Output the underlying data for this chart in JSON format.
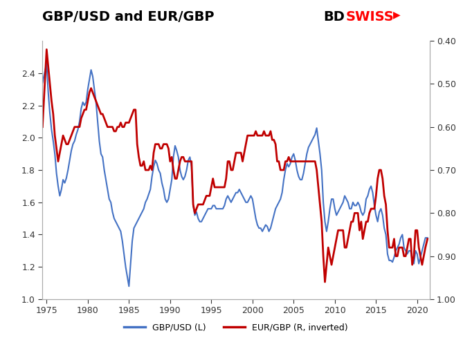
{
  "title": "GBP/USD and EUR/GBP",
  "left_label": "GBP/USD (L)",
  "right_label": "EUR/GBP (R, inverted)",
  "left_color": "#4472C4",
  "right_color": "#C00000",
  "left_ylim": [
    1.0,
    2.6
  ],
  "right_ylim": [
    0.4,
    1.0
  ],
  "xlim_start": 1974.5,
  "xlim_end": 2021.5,
  "xticks": [
    1975,
    1980,
    1985,
    1990,
    1995,
    2000,
    2005,
    2010,
    2015,
    2020
  ],
  "left_yticks": [
    1.0,
    1.2,
    1.4,
    1.6,
    1.8,
    2.0,
    2.2,
    2.4
  ],
  "right_yticks": [
    0.4,
    0.5,
    0.6,
    0.7,
    0.8,
    0.9,
    1.0
  ],
  "background_color": "#FFFFFF",
  "gbpusd_data": [
    [
      1974.5,
      2.34
    ],
    [
      1975.0,
      2.46
    ],
    [
      1975.2,
      2.28
    ],
    [
      1975.4,
      2.15
    ],
    [
      1975.6,
      2.05
    ],
    [
      1975.8,
      1.98
    ],
    [
      1976.0,
      1.9
    ],
    [
      1976.2,
      1.78
    ],
    [
      1976.4,
      1.7
    ],
    [
      1976.6,
      1.64
    ],
    [
      1976.8,
      1.68
    ],
    [
      1977.0,
      1.74
    ],
    [
      1977.2,
      1.72
    ],
    [
      1977.4,
      1.75
    ],
    [
      1977.6,
      1.8
    ],
    [
      1977.8,
      1.86
    ],
    [
      1978.0,
      1.92
    ],
    [
      1978.2,
      1.96
    ],
    [
      1978.4,
      1.98
    ],
    [
      1978.6,
      2.02
    ],
    [
      1978.8,
      2.05
    ],
    [
      1979.0,
      2.1
    ],
    [
      1979.2,
      2.18
    ],
    [
      1979.4,
      2.22
    ],
    [
      1979.6,
      2.2
    ],
    [
      1979.8,
      2.22
    ],
    [
      1980.0,
      2.3
    ],
    [
      1980.2,
      2.36
    ],
    [
      1980.4,
      2.42
    ],
    [
      1980.6,
      2.38
    ],
    [
      1980.8,
      2.3
    ],
    [
      1981.0,
      2.22
    ],
    [
      1981.2,
      2.1
    ],
    [
      1981.4,
      1.98
    ],
    [
      1981.6,
      1.9
    ],
    [
      1981.8,
      1.88
    ],
    [
      1982.0,
      1.8
    ],
    [
      1982.2,
      1.74
    ],
    [
      1982.4,
      1.68
    ],
    [
      1982.6,
      1.62
    ],
    [
      1982.8,
      1.6
    ],
    [
      1983.0,
      1.54
    ],
    [
      1983.2,
      1.5
    ],
    [
      1983.4,
      1.48
    ],
    [
      1983.6,
      1.46
    ],
    [
      1983.8,
      1.44
    ],
    [
      1984.0,
      1.42
    ],
    [
      1984.2,
      1.36
    ],
    [
      1984.4,
      1.28
    ],
    [
      1984.6,
      1.2
    ],
    [
      1984.8,
      1.14
    ],
    [
      1985.0,
      1.08
    ],
    [
      1985.2,
      1.22
    ],
    [
      1985.4,
      1.36
    ],
    [
      1985.6,
      1.44
    ],
    [
      1985.8,
      1.46
    ],
    [
      1986.0,
      1.48
    ],
    [
      1986.2,
      1.5
    ],
    [
      1986.4,
      1.52
    ],
    [
      1986.6,
      1.54
    ],
    [
      1986.8,
      1.56
    ],
    [
      1987.0,
      1.6
    ],
    [
      1987.2,
      1.62
    ],
    [
      1987.4,
      1.65
    ],
    [
      1987.6,
      1.68
    ],
    [
      1987.8,
      1.76
    ],
    [
      1988.0,
      1.82
    ],
    [
      1988.2,
      1.86
    ],
    [
      1988.4,
      1.84
    ],
    [
      1988.6,
      1.8
    ],
    [
      1988.8,
      1.78
    ],
    [
      1989.0,
      1.72
    ],
    [
      1989.2,
      1.68
    ],
    [
      1989.4,
      1.62
    ],
    [
      1989.6,
      1.6
    ],
    [
      1989.8,
      1.62
    ],
    [
      1990.0,
      1.68
    ],
    [
      1990.2,
      1.74
    ],
    [
      1990.4,
      1.88
    ],
    [
      1990.6,
      1.95
    ],
    [
      1990.8,
      1.92
    ],
    [
      1991.0,
      1.88
    ],
    [
      1991.2,
      1.8
    ],
    [
      1991.4,
      1.76
    ],
    [
      1991.6,
      1.74
    ],
    [
      1991.8,
      1.76
    ],
    [
      1992.0,
      1.8
    ],
    [
      1992.2,
      1.86
    ],
    [
      1992.4,
      1.88
    ],
    [
      1992.6,
      1.82
    ],
    [
      1992.8,
      1.58
    ],
    [
      1993.0,
      1.52
    ],
    [
      1993.2,
      1.54
    ],
    [
      1993.4,
      1.5
    ],
    [
      1993.6,
      1.48
    ],
    [
      1993.8,
      1.48
    ],
    [
      1994.0,
      1.5
    ],
    [
      1994.2,
      1.52
    ],
    [
      1994.4,
      1.54
    ],
    [
      1994.6,
      1.56
    ],
    [
      1994.8,
      1.56
    ],
    [
      1995.0,
      1.56
    ],
    [
      1995.2,
      1.58
    ],
    [
      1995.4,
      1.58
    ],
    [
      1995.6,
      1.56
    ],
    [
      1995.8,
      1.56
    ],
    [
      1996.0,
      1.56
    ],
    [
      1996.2,
      1.56
    ],
    [
      1996.4,
      1.56
    ],
    [
      1996.6,
      1.58
    ],
    [
      1996.8,
      1.62
    ],
    [
      1997.0,
      1.64
    ],
    [
      1997.2,
      1.62
    ],
    [
      1997.4,
      1.6
    ],
    [
      1997.6,
      1.62
    ],
    [
      1997.8,
      1.64
    ],
    [
      1998.0,
      1.66
    ],
    [
      1998.2,
      1.66
    ],
    [
      1998.4,
      1.68
    ],
    [
      1998.6,
      1.66
    ],
    [
      1998.8,
      1.64
    ],
    [
      1999.0,
      1.62
    ],
    [
      1999.2,
      1.6
    ],
    [
      1999.4,
      1.6
    ],
    [
      1999.6,
      1.62
    ],
    [
      1999.8,
      1.64
    ],
    [
      2000.0,
      1.62
    ],
    [
      2000.2,
      1.56
    ],
    [
      2000.4,
      1.5
    ],
    [
      2000.6,
      1.46
    ],
    [
      2000.8,
      1.44
    ],
    [
      2001.0,
      1.44
    ],
    [
      2001.2,
      1.42
    ],
    [
      2001.4,
      1.44
    ],
    [
      2001.6,
      1.46
    ],
    [
      2001.8,
      1.45
    ],
    [
      2002.0,
      1.42
    ],
    [
      2002.2,
      1.44
    ],
    [
      2002.4,
      1.48
    ],
    [
      2002.6,
      1.52
    ],
    [
      2002.8,
      1.56
    ],
    [
      2003.0,
      1.58
    ],
    [
      2003.2,
      1.6
    ],
    [
      2003.4,
      1.62
    ],
    [
      2003.6,
      1.66
    ],
    [
      2003.8,
      1.74
    ],
    [
      2004.0,
      1.8
    ],
    [
      2004.2,
      1.84
    ],
    [
      2004.4,
      1.82
    ],
    [
      2004.6,
      1.84
    ],
    [
      2004.8,
      1.88
    ],
    [
      2005.0,
      1.9
    ],
    [
      2005.2,
      1.86
    ],
    [
      2005.4,
      1.8
    ],
    [
      2005.6,
      1.76
    ],
    [
      2005.8,
      1.74
    ],
    [
      2006.0,
      1.74
    ],
    [
      2006.2,
      1.78
    ],
    [
      2006.4,
      1.84
    ],
    [
      2006.6,
      1.9
    ],
    [
      2006.8,
      1.94
    ],
    [
      2007.0,
      1.96
    ],
    [
      2007.2,
      1.98
    ],
    [
      2007.4,
      2.0
    ],
    [
      2007.6,
      2.02
    ],
    [
      2007.8,
      2.06
    ],
    [
      2008.0,
      1.98
    ],
    [
      2008.2,
      1.9
    ],
    [
      2008.4,
      1.8
    ],
    [
      2008.6,
      1.6
    ],
    [
      2008.8,
      1.48
    ],
    [
      2009.0,
      1.42
    ],
    [
      2009.2,
      1.48
    ],
    [
      2009.4,
      1.56
    ],
    [
      2009.6,
      1.62
    ],
    [
      2009.8,
      1.62
    ],
    [
      2010.0,
      1.56
    ],
    [
      2010.2,
      1.52
    ],
    [
      2010.4,
      1.54
    ],
    [
      2010.6,
      1.56
    ],
    [
      2010.8,
      1.58
    ],
    [
      2011.0,
      1.6
    ],
    [
      2011.2,
      1.64
    ],
    [
      2011.4,
      1.62
    ],
    [
      2011.6,
      1.6
    ],
    [
      2011.8,
      1.56
    ],
    [
      2012.0,
      1.56
    ],
    [
      2012.2,
      1.6
    ],
    [
      2012.4,
      1.58
    ],
    [
      2012.6,
      1.58
    ],
    [
      2012.8,
      1.6
    ],
    [
      2013.0,
      1.58
    ],
    [
      2013.2,
      1.54
    ],
    [
      2013.4,
      1.52
    ],
    [
      2013.6,
      1.54
    ],
    [
      2013.8,
      1.62
    ],
    [
      2014.0,
      1.64
    ],
    [
      2014.2,
      1.68
    ],
    [
      2014.4,
      1.7
    ],
    [
      2014.6,
      1.66
    ],
    [
      2014.8,
      1.58
    ],
    [
      2015.0,
      1.52
    ],
    [
      2015.2,
      1.48
    ],
    [
      2015.4,
      1.54
    ],
    [
      2015.6,
      1.56
    ],
    [
      2015.8,
      1.52
    ],
    [
      2016.0,
      1.44
    ],
    [
      2016.2,
      1.4
    ],
    [
      2016.4,
      1.28
    ],
    [
      2016.6,
      1.24
    ],
    [
      2016.8,
      1.24
    ],
    [
      2017.0,
      1.23
    ],
    [
      2017.2,
      1.26
    ],
    [
      2017.4,
      1.3
    ],
    [
      2017.6,
      1.32
    ],
    [
      2017.8,
      1.34
    ],
    [
      2018.0,
      1.38
    ],
    [
      2018.2,
      1.4
    ],
    [
      2018.4,
      1.32
    ],
    [
      2018.6,
      1.3
    ],
    [
      2018.8,
      1.28
    ],
    [
      2019.0,
      1.3
    ],
    [
      2019.2,
      1.3
    ],
    [
      2019.4,
      1.24
    ],
    [
      2019.6,
      1.22
    ],
    [
      2019.8,
      1.3
    ],
    [
      2020.0,
      1.28
    ],
    [
      2020.2,
      1.22
    ],
    [
      2020.4,
      1.26
    ],
    [
      2020.6,
      1.3
    ],
    [
      2020.8,
      1.34
    ],
    [
      2021.0,
      1.38
    ],
    [
      2021.25,
      1.38
    ]
  ],
  "eurgbp_data": [
    [
      1974.5,
      0.6
    ],
    [
      1975.0,
      0.42
    ],
    [
      1975.2,
      0.46
    ],
    [
      1975.4,
      0.5
    ],
    [
      1975.6,
      0.54
    ],
    [
      1975.8,
      0.57
    ],
    [
      1976.0,
      0.62
    ],
    [
      1976.2,
      0.65
    ],
    [
      1976.4,
      0.68
    ],
    [
      1976.6,
      0.66
    ],
    [
      1976.8,
      0.64
    ],
    [
      1977.0,
      0.62
    ],
    [
      1977.2,
      0.63
    ],
    [
      1977.4,
      0.64
    ],
    [
      1977.6,
      0.64
    ],
    [
      1977.8,
      0.63
    ],
    [
      1978.0,
      0.62
    ],
    [
      1978.2,
      0.61
    ],
    [
      1978.4,
      0.6
    ],
    [
      1978.6,
      0.6
    ],
    [
      1978.8,
      0.6
    ],
    [
      1979.0,
      0.6
    ],
    [
      1979.2,
      0.58
    ],
    [
      1979.4,
      0.57
    ],
    [
      1979.6,
      0.56
    ],
    [
      1979.8,
      0.56
    ],
    [
      1980.0,
      0.54
    ],
    [
      1980.2,
      0.52
    ],
    [
      1980.4,
      0.51
    ],
    [
      1980.6,
      0.52
    ],
    [
      1980.8,
      0.53
    ],
    [
      1981.0,
      0.54
    ],
    [
      1981.2,
      0.55
    ],
    [
      1981.4,
      0.56
    ],
    [
      1981.6,
      0.57
    ],
    [
      1981.8,
      0.57
    ],
    [
      1982.0,
      0.58
    ],
    [
      1982.2,
      0.59
    ],
    [
      1982.4,
      0.6
    ],
    [
      1982.6,
      0.6
    ],
    [
      1982.8,
      0.6
    ],
    [
      1983.0,
      0.6
    ],
    [
      1983.2,
      0.61
    ],
    [
      1983.4,
      0.61
    ],
    [
      1983.6,
      0.6
    ],
    [
      1983.8,
      0.6
    ],
    [
      1984.0,
      0.59
    ],
    [
      1984.2,
      0.6
    ],
    [
      1984.4,
      0.6
    ],
    [
      1984.6,
      0.59
    ],
    [
      1984.8,
      0.59
    ],
    [
      1985.0,
      0.59
    ],
    [
      1985.2,
      0.58
    ],
    [
      1985.4,
      0.57
    ],
    [
      1985.6,
      0.56
    ],
    [
      1985.8,
      0.56
    ],
    [
      1986.0,
      0.64
    ],
    [
      1986.2,
      0.67
    ],
    [
      1986.4,
      0.69
    ],
    [
      1986.6,
      0.69
    ],
    [
      1986.8,
      0.68
    ],
    [
      1987.0,
      0.7
    ],
    [
      1987.2,
      0.7
    ],
    [
      1987.4,
      0.7
    ],
    [
      1987.6,
      0.69
    ],
    [
      1987.8,
      0.7
    ],
    [
      1988.0,
      0.66
    ],
    [
      1988.2,
      0.64
    ],
    [
      1988.4,
      0.64
    ],
    [
      1988.6,
      0.64
    ],
    [
      1988.8,
      0.65
    ],
    [
      1989.0,
      0.65
    ],
    [
      1989.2,
      0.64
    ],
    [
      1989.4,
      0.64
    ],
    [
      1989.6,
      0.64
    ],
    [
      1989.8,
      0.65
    ],
    [
      1990.0,
      0.68
    ],
    [
      1990.2,
      0.67
    ],
    [
      1990.4,
      0.7
    ],
    [
      1990.6,
      0.72
    ],
    [
      1990.8,
      0.72
    ],
    [
      1991.0,
      0.7
    ],
    [
      1991.2,
      0.68
    ],
    [
      1991.4,
      0.67
    ],
    [
      1991.6,
      0.67
    ],
    [
      1991.8,
      0.68
    ],
    [
      1992.0,
      0.68
    ],
    [
      1992.2,
      0.68
    ],
    [
      1992.4,
      0.68
    ],
    [
      1992.6,
      0.68
    ],
    [
      1992.8,
      0.78
    ],
    [
      1993.0,
      0.8
    ],
    [
      1993.2,
      0.79
    ],
    [
      1993.4,
      0.78
    ],
    [
      1993.6,
      0.78
    ],
    [
      1993.8,
      0.78
    ],
    [
      1994.0,
      0.78
    ],
    [
      1994.2,
      0.77
    ],
    [
      1994.4,
      0.76
    ],
    [
      1994.6,
      0.76
    ],
    [
      1994.8,
      0.76
    ],
    [
      1995.0,
      0.74
    ],
    [
      1995.2,
      0.72
    ],
    [
      1995.4,
      0.74
    ],
    [
      1995.6,
      0.74
    ],
    [
      1995.8,
      0.74
    ],
    [
      1996.0,
      0.74
    ],
    [
      1996.2,
      0.74
    ],
    [
      1996.4,
      0.74
    ],
    [
      1996.6,
      0.74
    ],
    [
      1996.8,
      0.72
    ],
    [
      1997.0,
      0.68
    ],
    [
      1997.2,
      0.68
    ],
    [
      1997.4,
      0.7
    ],
    [
      1997.6,
      0.7
    ],
    [
      1997.8,
      0.68
    ],
    [
      1998.0,
      0.66
    ],
    [
      1998.2,
      0.66
    ],
    [
      1998.4,
      0.66
    ],
    [
      1998.6,
      0.66
    ],
    [
      1998.8,
      0.68
    ],
    [
      1999.0,
      0.66
    ],
    [
      1999.2,
      0.64
    ],
    [
      1999.4,
      0.62
    ],
    [
      1999.6,
      0.62
    ],
    [
      1999.8,
      0.62
    ],
    [
      2000.0,
      0.62
    ],
    [
      2000.2,
      0.62
    ],
    [
      2000.4,
      0.61
    ],
    [
      2000.6,
      0.62
    ],
    [
      2000.8,
      0.62
    ],
    [
      2001.0,
      0.62
    ],
    [
      2001.2,
      0.62
    ],
    [
      2001.4,
      0.61
    ],
    [
      2001.6,
      0.62
    ],
    [
      2001.8,
      0.62
    ],
    [
      2002.0,
      0.62
    ],
    [
      2002.2,
      0.61
    ],
    [
      2002.4,
      0.63
    ],
    [
      2002.6,
      0.63
    ],
    [
      2002.8,
      0.64
    ],
    [
      2003.0,
      0.68
    ],
    [
      2003.2,
      0.68
    ],
    [
      2003.4,
      0.7
    ],
    [
      2003.6,
      0.7
    ],
    [
      2003.8,
      0.7
    ],
    [
      2004.0,
      0.68
    ],
    [
      2004.2,
      0.68
    ],
    [
      2004.4,
      0.67
    ],
    [
      2004.6,
      0.68
    ],
    [
      2004.8,
      0.68
    ],
    [
      2005.0,
      0.68
    ],
    [
      2005.2,
      0.68
    ],
    [
      2005.4,
      0.68
    ],
    [
      2005.6,
      0.68
    ],
    [
      2005.8,
      0.68
    ],
    [
      2006.0,
      0.68
    ],
    [
      2006.2,
      0.68
    ],
    [
      2006.4,
      0.68
    ],
    [
      2006.6,
      0.68
    ],
    [
      2006.8,
      0.68
    ],
    [
      2007.0,
      0.68
    ],
    [
      2007.2,
      0.68
    ],
    [
      2007.4,
      0.68
    ],
    [
      2007.6,
      0.68
    ],
    [
      2007.8,
      0.7
    ],
    [
      2008.0,
      0.74
    ],
    [
      2008.2,
      0.78
    ],
    [
      2008.4,
      0.82
    ],
    [
      2008.6,
      0.9
    ],
    [
      2008.8,
      0.96
    ],
    [
      2009.0,
      0.92
    ],
    [
      2009.2,
      0.88
    ],
    [
      2009.4,
      0.9
    ],
    [
      2009.6,
      0.92
    ],
    [
      2009.8,
      0.9
    ],
    [
      2010.0,
      0.88
    ],
    [
      2010.2,
      0.86
    ],
    [
      2010.4,
      0.84
    ],
    [
      2010.6,
      0.84
    ],
    [
      2010.8,
      0.84
    ],
    [
      2011.0,
      0.84
    ],
    [
      2011.2,
      0.88
    ],
    [
      2011.4,
      0.88
    ],
    [
      2011.6,
      0.86
    ],
    [
      2011.8,
      0.84
    ],
    [
      2012.0,
      0.82
    ],
    [
      2012.2,
      0.82
    ],
    [
      2012.4,
      0.8
    ],
    [
      2012.6,
      0.8
    ],
    [
      2012.8,
      0.8
    ],
    [
      2013.0,
      0.84
    ],
    [
      2013.2,
      0.82
    ],
    [
      2013.4,
      0.86
    ],
    [
      2013.6,
      0.84
    ],
    [
      2013.8,
      0.82
    ],
    [
      2014.0,
      0.82
    ],
    [
      2014.2,
      0.8
    ],
    [
      2014.4,
      0.79
    ],
    [
      2014.6,
      0.79
    ],
    [
      2014.8,
      0.79
    ],
    [
      2015.0,
      0.76
    ],
    [
      2015.2,
      0.72
    ],
    [
      2015.4,
      0.7
    ],
    [
      2015.6,
      0.7
    ],
    [
      2015.8,
      0.72
    ],
    [
      2016.0,
      0.76
    ],
    [
      2016.2,
      0.78
    ],
    [
      2016.4,
      0.84
    ],
    [
      2016.6,
      0.88
    ],
    [
      2016.8,
      0.88
    ],
    [
      2017.0,
      0.88
    ],
    [
      2017.2,
      0.86
    ],
    [
      2017.4,
      0.9
    ],
    [
      2017.6,
      0.9
    ],
    [
      2017.8,
      0.88
    ],
    [
      2018.0,
      0.88
    ],
    [
      2018.2,
      0.88
    ],
    [
      2018.4,
      0.9
    ],
    [
      2018.6,
      0.9
    ],
    [
      2018.8,
      0.88
    ],
    [
      2019.0,
      0.86
    ],
    [
      2019.2,
      0.86
    ],
    [
      2019.4,
      0.92
    ],
    [
      2019.6,
      0.9
    ],
    [
      2019.8,
      0.84
    ],
    [
      2020.0,
      0.84
    ],
    [
      2020.2,
      0.88
    ],
    [
      2020.4,
      0.9
    ],
    [
      2020.6,
      0.92
    ],
    [
      2020.8,
      0.9
    ],
    [
      2021.0,
      0.88
    ],
    [
      2021.25,
      0.86
    ]
  ]
}
